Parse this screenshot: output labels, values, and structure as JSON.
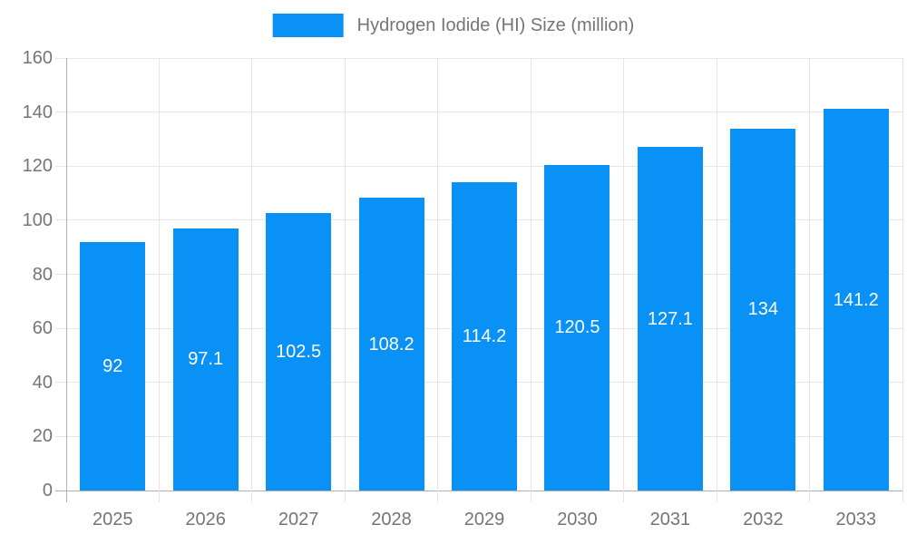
{
  "chart_data": {
    "type": "bar",
    "title": "",
    "legend": "Hydrogen Iodide (HI) Size (million)",
    "categories": [
      "2025",
      "2026",
      "2027",
      "2028",
      "2029",
      "2030",
      "2031",
      "2032",
      "2033"
    ],
    "values": [
      92,
      97.1,
      102.5,
      108.2,
      114.2,
      120.5,
      127.1,
      134,
      141.2
    ],
    "value_labels": [
      "92",
      "97.1",
      "102.5",
      "108.2",
      "114.2",
      "120.5",
      "127.1",
      "134",
      "141.2"
    ],
    "xlabel": "",
    "ylabel": "",
    "ylim": [
      0,
      160
    ],
    "ytick_step": 20,
    "ytick_labels": [
      "0",
      "20",
      "40",
      "60",
      "80",
      "100",
      "120",
      "140",
      "160"
    ],
    "grid": true,
    "legend_position": "top-center",
    "colors": {
      "bar": "#0991f5",
      "value_label_text": "#ffffff",
      "axis_text": "#757575",
      "gridline": "#e6e6e6",
      "axis_line": "#b0b0b0",
      "background": "#ffffff"
    }
  }
}
